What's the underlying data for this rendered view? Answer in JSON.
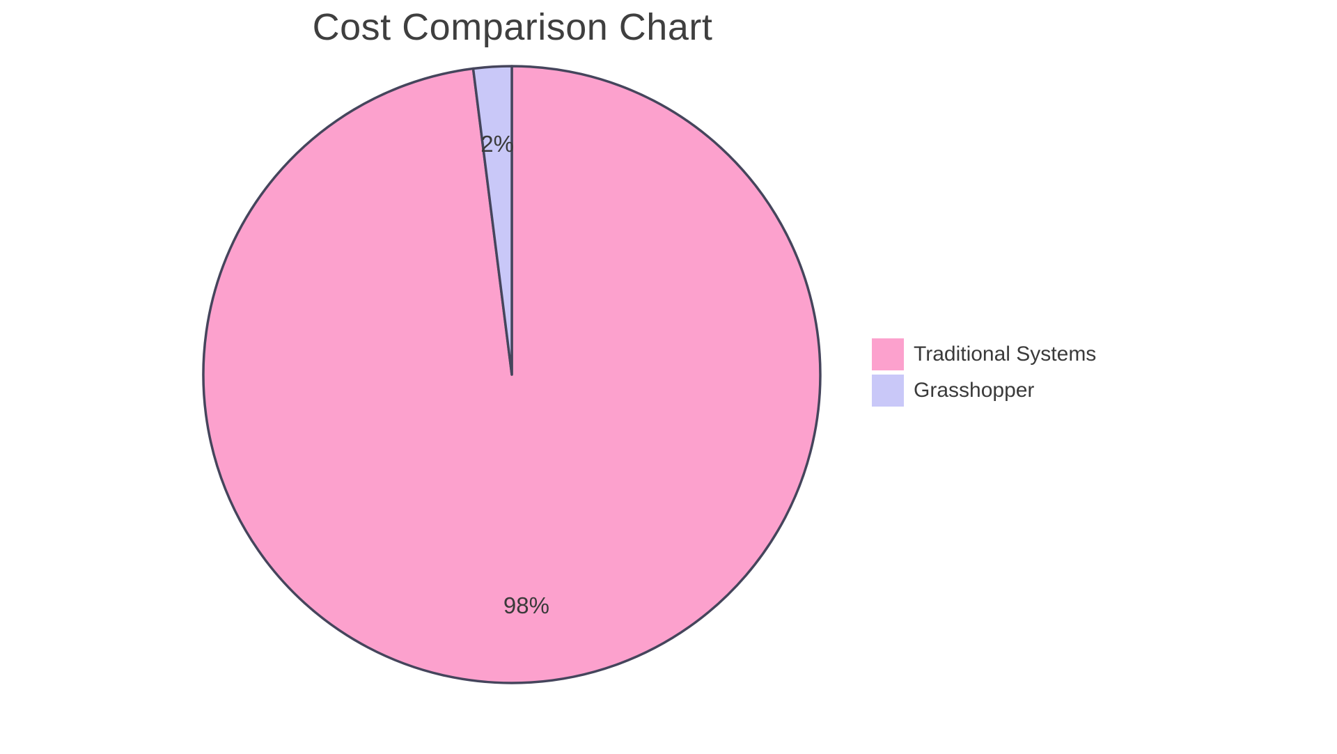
{
  "page": {
    "background_color": "#FFFFFF"
  },
  "chart_data": {
    "type": "pie",
    "title": "Cost Comparison Chart",
    "labels": [
      "Traditional Systems",
      "Grasshopper"
    ],
    "values": [
      98,
      2
    ],
    "value_labels": [
      "98%",
      "2%"
    ],
    "colors": [
      "#FCA1CD",
      "#C9C8F8"
    ],
    "outline_color": "#45455C",
    "label_text_color": "#3A3A3A",
    "title_color": "#3F3F3F",
    "legend_position": "right",
    "start_angle_deg": 0,
    "direction": "clockwise",
    "grid": false
  }
}
